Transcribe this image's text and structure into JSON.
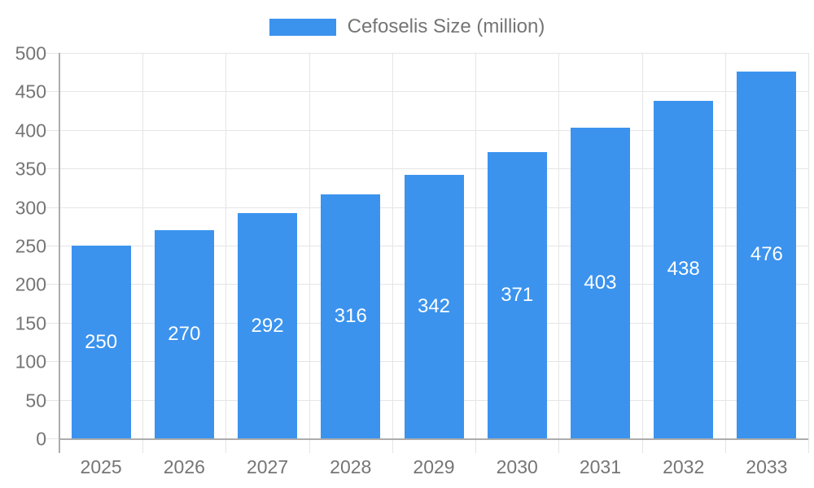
{
  "legend": {
    "label": "Cefoselis Size (million)"
  },
  "chart_data": {
    "type": "bar",
    "title": "Cefoselis Size (million)",
    "categories": [
      "2025",
      "2026",
      "2027",
      "2028",
      "2029",
      "2030",
      "2031",
      "2032",
      "2033"
    ],
    "series": [
      {
        "name": "Cefoselis Size (million)",
        "values": [
          250,
          270,
          292,
          316,
          342,
          371,
          403,
          438,
          476
        ]
      }
    ],
    "value_labels": [
      250,
      270,
      292,
      316,
      342,
      371,
      403,
      438,
      476
    ],
    "xlabel": "",
    "ylabel": "",
    "ylim": [
      0,
      500
    ],
    "yticks": [
      0,
      50,
      100,
      150,
      200,
      250,
      300,
      350,
      400,
      450,
      500
    ],
    "grid": true,
    "legend_position": "top-center",
    "value_label_position": "inside-center",
    "colors": {
      "bar": "#3B93EE",
      "grid": "#E5E5E5",
      "axis": "#ACACAC",
      "text": "#757575",
      "value_text": "#FFFFFF",
      "background": "#FFFFFF"
    }
  }
}
